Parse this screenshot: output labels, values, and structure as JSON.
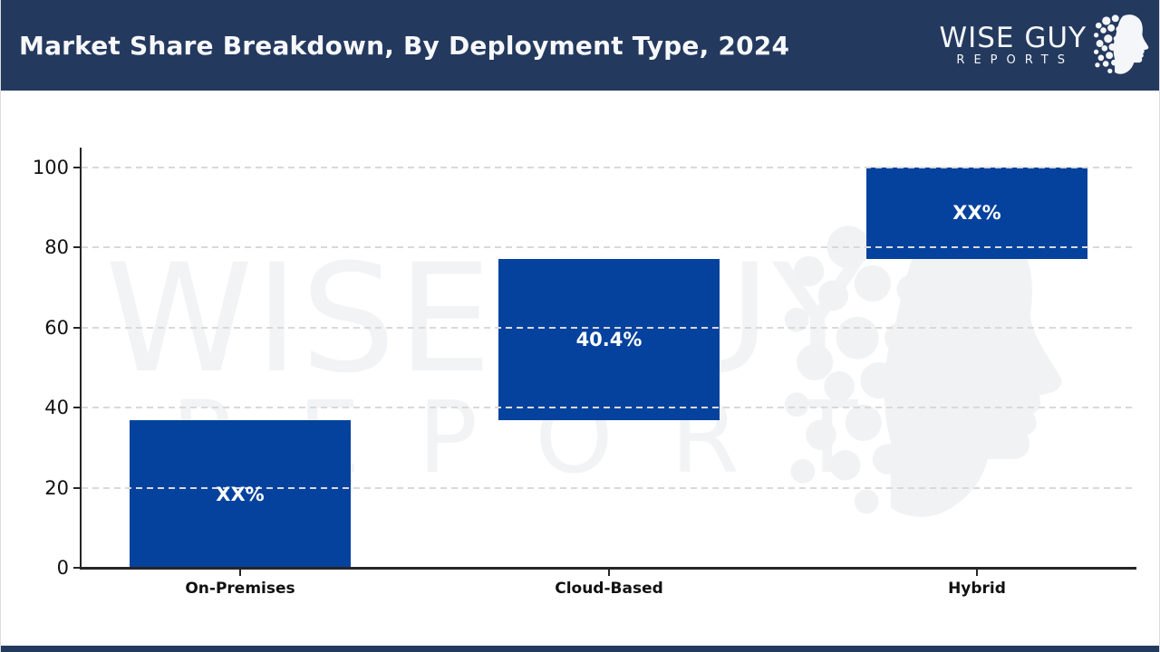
{
  "header": {
    "title": "Market Share Breakdown, By Deployment Type, 2024",
    "logo": {
      "line1": "WISE GUY",
      "line2": "REPORTS"
    }
  },
  "watermark": {
    "line1": "WISE GUY",
    "line2": "REPORTS"
  },
  "chart_data": {
    "type": "bar",
    "subtype": "floating-segment waterfall (stacked market-share breakdown)",
    "title": "Market Share Breakdown, By Deployment Type, 2024",
    "categories": [
      "On-Premises",
      "Cloud-Based",
      "Hybrid"
    ],
    "bars": [
      {
        "category": "On-Premises",
        "start": 0,
        "end": 36.8,
        "label": "XX%"
      },
      {
        "category": "Cloud-Based",
        "start": 36.8,
        "end": 77.2,
        "label": "40.4%"
      },
      {
        "category": "Hybrid",
        "start": 77.2,
        "end": 100,
        "label": "XX%"
      }
    ],
    "ylim": [
      0,
      100
    ],
    "yticks": [
      0,
      20,
      40,
      60,
      80,
      100
    ],
    "xlabel": "",
    "ylabel": "",
    "legend": "none",
    "grid": "horizontal dashed gridlines drawn above bars",
    "bar_color": "#04429E",
    "value_label_color": "#FFFFFF"
  },
  "colors": {
    "header_bg": "#24395E",
    "footer_bg": "#24395E",
    "bar": "#04429E",
    "grid": "#D9D9D9",
    "axis": "#262626",
    "watermark": "#F2F3F5"
  }
}
